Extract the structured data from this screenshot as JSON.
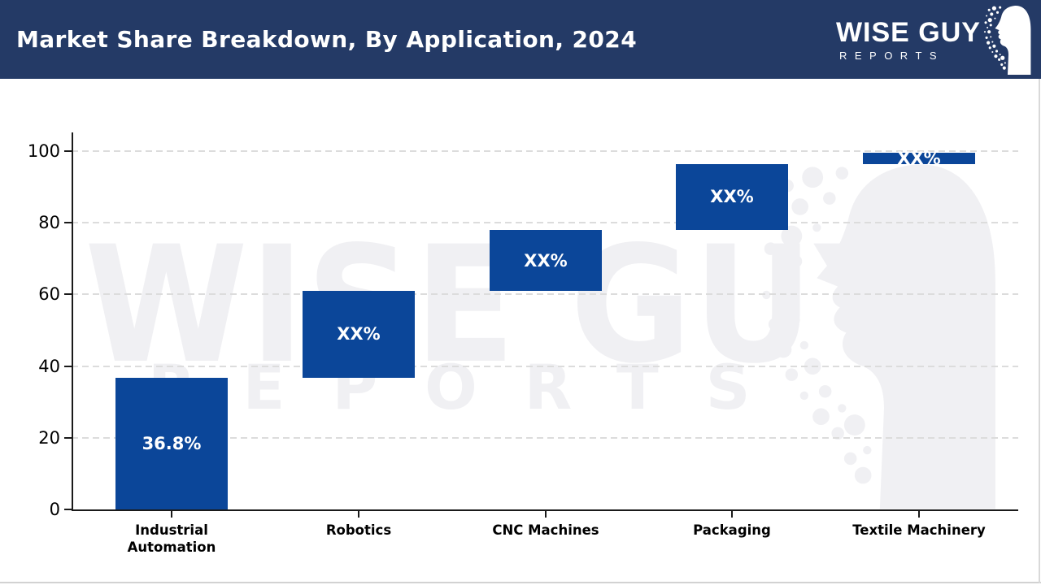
{
  "header": {
    "title": "Market Share Breakdown, By Application, 2024",
    "logo": {
      "line1": "WISE GUY",
      "line2": "REPORTS"
    }
  },
  "watermark": {
    "line1": "WISE GUY",
    "line2": "REPORTS"
  },
  "colors": {
    "header_bg": "#243a66",
    "bar": "#0b4699",
    "gridline": "#dcdcdc",
    "axis": "#1a1a1a",
    "bar_label": "#ffffff",
    "watermark": "#f0f0f3"
  },
  "chart_data": {
    "type": "bar",
    "subtype": "floating-waterfall-segments",
    "title": "Market Share Breakdown, By Application, 2024",
    "categories": [
      "Industrial Automation",
      "Robotics",
      "CNC Machines",
      "Packaging",
      "Textile Machinery"
    ],
    "segments": [
      {
        "category": "Industrial\nAutomation",
        "start": 0,
        "end": 36.8,
        "label": "36.8%"
      },
      {
        "category": "Robotics",
        "start": 36.8,
        "end": 61.0,
        "label": "XX%"
      },
      {
        "category": "CNC Machines",
        "start": 61.0,
        "end": 78.0,
        "label": "XX%"
      },
      {
        "category": "Packaging",
        "start": 78.0,
        "end": 96.4,
        "label": "XX%"
      },
      {
        "category": "Textile Machinery",
        "start": 96.4,
        "end": 99.6,
        "label": "XX%"
      }
    ],
    "yticks": [
      0,
      20,
      40,
      60,
      80,
      100
    ],
    "ylim": [
      0,
      105
    ],
    "xlabel": "",
    "ylabel": "",
    "grid": "horizontal-dashed",
    "legend": "none",
    "bar_color": "#0b4699",
    "value_label_color": "#ffffff"
  }
}
